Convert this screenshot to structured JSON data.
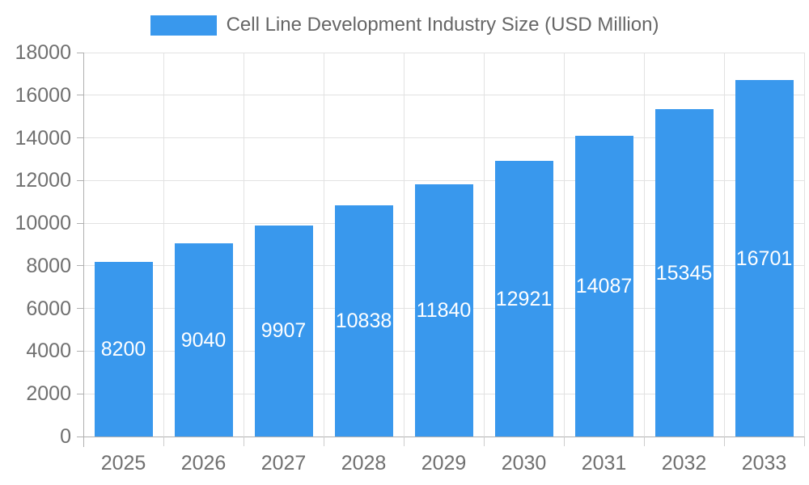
{
  "chart_data": {
    "type": "bar",
    "title": "Cell Line Development Industry Size (USD Million)",
    "categories": [
      "2025",
      "2026",
      "2027",
      "2028",
      "2029",
      "2030",
      "2031",
      "2032",
      "2033"
    ],
    "values": [
      8200,
      9040,
      9907,
      10838,
      11840,
      12921,
      14087,
      15345,
      16701
    ],
    "value_labels": [
      "8200",
      "9040",
      "9907",
      "10838",
      "11840",
      "12921",
      "14087",
      "15345",
      "16701"
    ],
    "xlabel": "",
    "ylabel": "",
    "ylim": [
      0,
      18000
    ],
    "yticks": [
      0,
      2000,
      4000,
      6000,
      8000,
      10000,
      12000,
      14000,
      16000,
      18000
    ],
    "ytick_labels": [
      "0",
      "2000",
      "4000",
      "6000",
      "8000",
      "10000",
      "12000",
      "14000",
      "16000",
      "18000"
    ],
    "grid": true,
    "legend_position": "top-center",
    "value_label_position": "center-of-bar"
  },
  "colors": {
    "bar": "#3998ED",
    "grid": "#e2e2e2",
    "axis": "#b0b0b0",
    "x_tick": "#cccccc",
    "tick_label": "#707070",
    "legend_text": "#666666",
    "value_label": "#ffffff",
    "background": "#ffffff"
  }
}
